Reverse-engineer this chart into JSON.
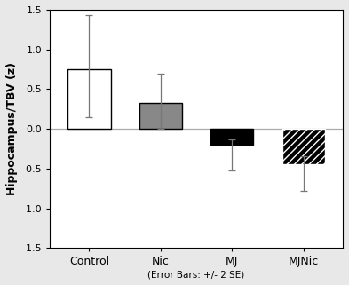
{
  "categories": [
    "Control",
    "Nic",
    "MJ",
    "MJNic"
  ],
  "values": [
    0.75,
    0.32,
    -0.2,
    -0.45
  ],
  "errors_plus": [
    0.68,
    0.37,
    0.07,
    0.1
  ],
  "errors_minus": [
    0.6,
    0.32,
    0.32,
    0.33
  ],
  "bar_colors": [
    "white",
    "#888888",
    "black",
    "black"
  ],
  "bar_edgecolors": [
    "black",
    "black",
    "black",
    "white"
  ],
  "hatches": [
    "",
    "",
    "",
    "////"
  ],
  "ylim": [
    -1.5,
    1.5
  ],
  "yticks": [
    -1.5,
    -1.0,
    -0.5,
    0.0,
    0.5,
    1.0,
    1.5
  ],
  "ytick_labels": [
    "-1.5",
    "-1.0",
    "-0.5",
    "0.0",
    "0.5",
    "1.0",
    "1.5"
  ],
  "ylabel": "Hippocampus/TBV (z)",
  "xlabel_caption": "(Error Bars: +/- 2 SE)",
  "bar_width": 0.6,
  "figure_bg_color": "#e8e8e8",
  "plot_bg_color": "#ffffff",
  "error_capsize": 3,
  "error_linewidth": 0.9,
  "error_color": "#777777",
  "tick_fontsize": 8,
  "ylabel_fontsize": 9,
  "xlabel_fontsize": 7.5,
  "xtick_fontsize": 9,
  "hline_color": "#aaaaaa",
  "hline_lw": 0.9
}
